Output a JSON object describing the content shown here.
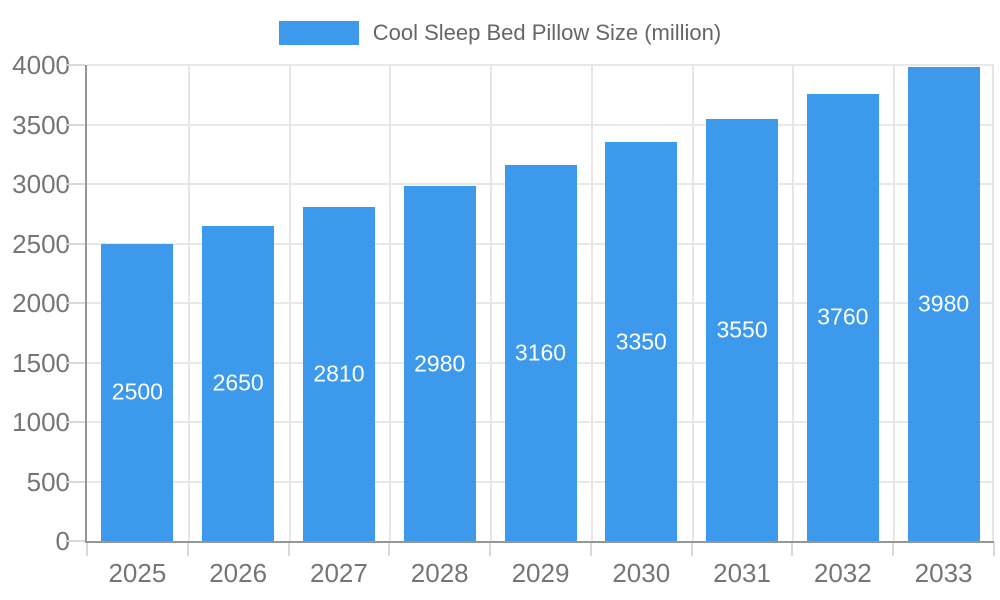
{
  "legend": {
    "label": "Cool Sleep Bed Pillow Size (million)"
  },
  "chart_data": {
    "type": "bar",
    "title": "Cool Sleep Bed Pillow Size (million)",
    "series_name": "Cool Sleep Bed Pillow Size (million)",
    "categories": [
      "2025",
      "2026",
      "2027",
      "2028",
      "2029",
      "2030",
      "2031",
      "2032",
      "2033"
    ],
    "values": [
      2500,
      2650,
      2810,
      2980,
      3160,
      3350,
      3550,
      3760,
      3980
    ],
    "value_labels": [
      "2500",
      "2650",
      "2810",
      "2980",
      "3160",
      "3350",
      "3550",
      "3760",
      "3980"
    ],
    "ylim": [
      0,
      4000
    ],
    "ytick_step": 500,
    "yticks": [
      0,
      500,
      1000,
      1500,
      2000,
      2500,
      3000,
      3500,
      4000
    ],
    "xlabel": "",
    "ylabel": "",
    "grid": true,
    "legend_position": "top-center",
    "bar_color": "#3C99EC",
    "value_label_color": "#FFFFFF",
    "axis_label_color": "#757575"
  }
}
